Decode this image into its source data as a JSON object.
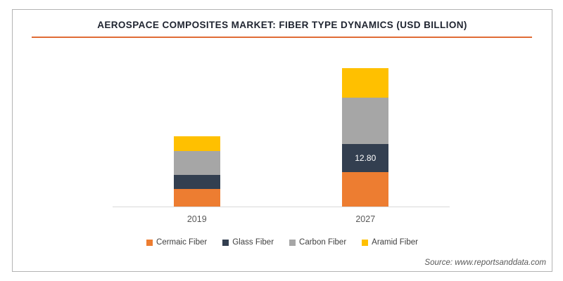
{
  "title": "AEROSPACE COMPOSITES MARKET: FIBER TYPE DYNAMICS (USD BILLION)",
  "source_note": "Source: www.reportsanddata.com",
  "colors": {
    "accent_rule": "#e06b35",
    "cermaic_fiber": "#ED7D31",
    "glass_fiber": "#333F50",
    "carbon_fiber": "#A6A6A6",
    "aramid_fiber": "#FFC000",
    "axis_line": "#d9d9d9",
    "axis_label_text": "#595959"
  },
  "chart_data": {
    "type": "bar",
    "stacked": true,
    "title": "AEROSPACE COMPOSITES MARKET: FIBER TYPE DYNAMICS (USD BILLION)",
    "xlabel": "",
    "ylabel": "USD Billion",
    "grid": false,
    "legend_position": "bottom",
    "categories": [
      "2019",
      "2027"
    ],
    "series": [
      {
        "name": "Cermaic Fiber",
        "color": "#ED7D31",
        "values": [
          8.0,
          15.7
        ]
      },
      {
        "name": "Glass Fiber",
        "color": "#333F50",
        "values": [
          6.4,
          12.8
        ]
      },
      {
        "name": "Carbon Fiber",
        "color": "#A6A6A6",
        "values": [
          11.0,
          21.1
        ]
      },
      {
        "name": "Aramid Fiber",
        "color": "#FFC000",
        "values": [
          6.7,
          13.4
        ]
      }
    ],
    "data_labels": [
      {
        "category": "2027",
        "series": "Glass Fiber",
        "label": "12.80"
      }
    ]
  }
}
